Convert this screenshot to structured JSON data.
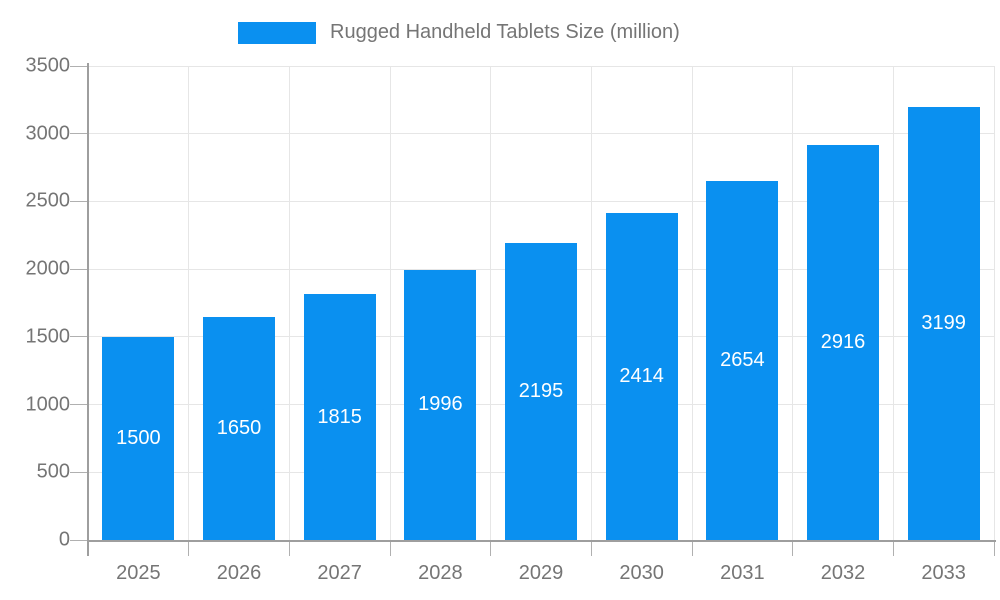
{
  "legend": {
    "label": "Rugged Handheld Tablets Size (million)"
  },
  "colors": {
    "bar": "#0a90f0",
    "text": "#757575",
    "grid": "#e6e6e6",
    "axis": "#9e9e9e",
    "tick": "#b0b0b0",
    "bar_label": "#ffffff",
    "background": "#ffffff"
  },
  "chart_data": {
    "type": "bar",
    "title": "Rugged Handheld Tablets Size (million)",
    "categories": [
      "2025",
      "2026",
      "2027",
      "2028",
      "2029",
      "2030",
      "2031",
      "2032",
      "2033"
    ],
    "values": [
      1500,
      1650,
      1815,
      1996,
      2195,
      2414,
      2654,
      2916,
      3199
    ],
    "xlabel": "",
    "ylabel": "",
    "ylim": [
      0,
      3500
    ],
    "yticks": [
      0,
      500,
      1000,
      1500,
      2000,
      2500,
      3000,
      3500
    ],
    "grid": true,
    "legend_position": "top",
    "bar_labels": "inside-center"
  }
}
